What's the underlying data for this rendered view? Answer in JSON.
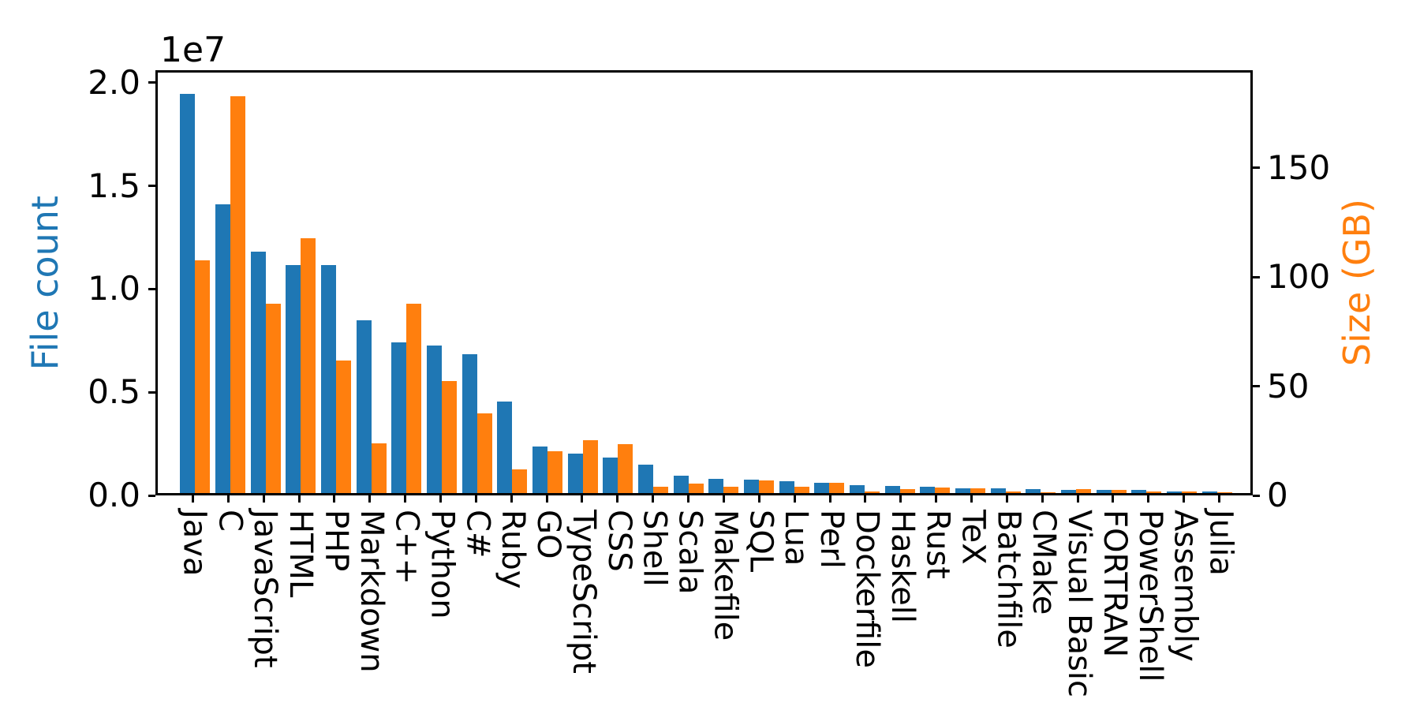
{
  "chart_data": {
    "type": "bar",
    "title": "",
    "description": "Grouped dual-axis bar chart of programming languages: file count (blue, left axis, 1e7 scale) and size in GB (orange, right axis)",
    "categories": [
      "Java",
      "C",
      "JavaScript",
      "HTML",
      "PHP",
      "Markdown",
      "C++",
      "Python",
      "C#",
      "Ruby",
      "GO",
      "TypeScript",
      "CSS",
      "Shell",
      "Scala",
      "Makefile",
      "SQL",
      "Lua",
      "Perl",
      "Dockerfile",
      "Haskell",
      "Rust",
      "TeX",
      "Batchfile",
      "CMake",
      "Visual Basic",
      "FORTRAN",
      "PowerShell",
      "Assembly",
      "Julia"
    ],
    "series": [
      {
        "name": "File count",
        "axis": "left",
        "color": "#1f77b4",
        "units": "files (1e7)",
        "values": [
          1.955,
          1.414,
          1.184,
          1.118,
          1.118,
          0.846,
          0.738,
          0.723,
          0.681,
          0.447,
          0.227,
          0.194,
          0.173,
          0.139,
          0.084,
          0.068,
          0.066,
          0.058,
          0.05,
          0.037,
          0.034,
          0.032,
          0.025,
          0.024,
          0.018,
          0.016,
          0.014,
          0.014,
          0.008,
          0.006
        ]
      },
      {
        "name": "Size (GB)",
        "axis": "right",
        "color": "#ff7f0e",
        "units": "GB",
        "values": [
          107.7,
          183.8,
          87.8,
          118.1,
          61.4,
          23.1,
          87.7,
          52.0,
          36.8,
          11.0,
          19.3,
          24.6,
          22.7,
          3.0,
          4.4,
          2.9,
          5.7,
          2.8,
          4.7,
          0.8,
          1.9,
          2.7,
          2.2,
          0.7,
          0.5,
          1.9,
          1.6,
          0.7,
          0.8,
          0.3
        ]
      }
    ],
    "left_axis": {
      "title": "File count",
      "offset_text": "1e7",
      "tick_values": [
        0.0,
        0.5,
        1.0,
        1.5,
        2.0
      ],
      "tick_labels": [
        "0.0",
        "0.5",
        "1.0",
        "1.5",
        "2.0"
      ],
      "range": [
        0,
        2.06
      ],
      "color": "#1f77b4"
    },
    "right_axis": {
      "title": "Size (GB)",
      "tick_values": [
        0,
        50,
        100,
        150
      ],
      "tick_labels": [
        "0",
        "50",
        "100",
        "150"
      ],
      "range": [
        0,
        194.6
      ],
      "color": "#ff7f0e"
    },
    "x_axis": {
      "tick_label_rotation_deg": 90,
      "grid": false,
      "legend": "none"
    }
  }
}
